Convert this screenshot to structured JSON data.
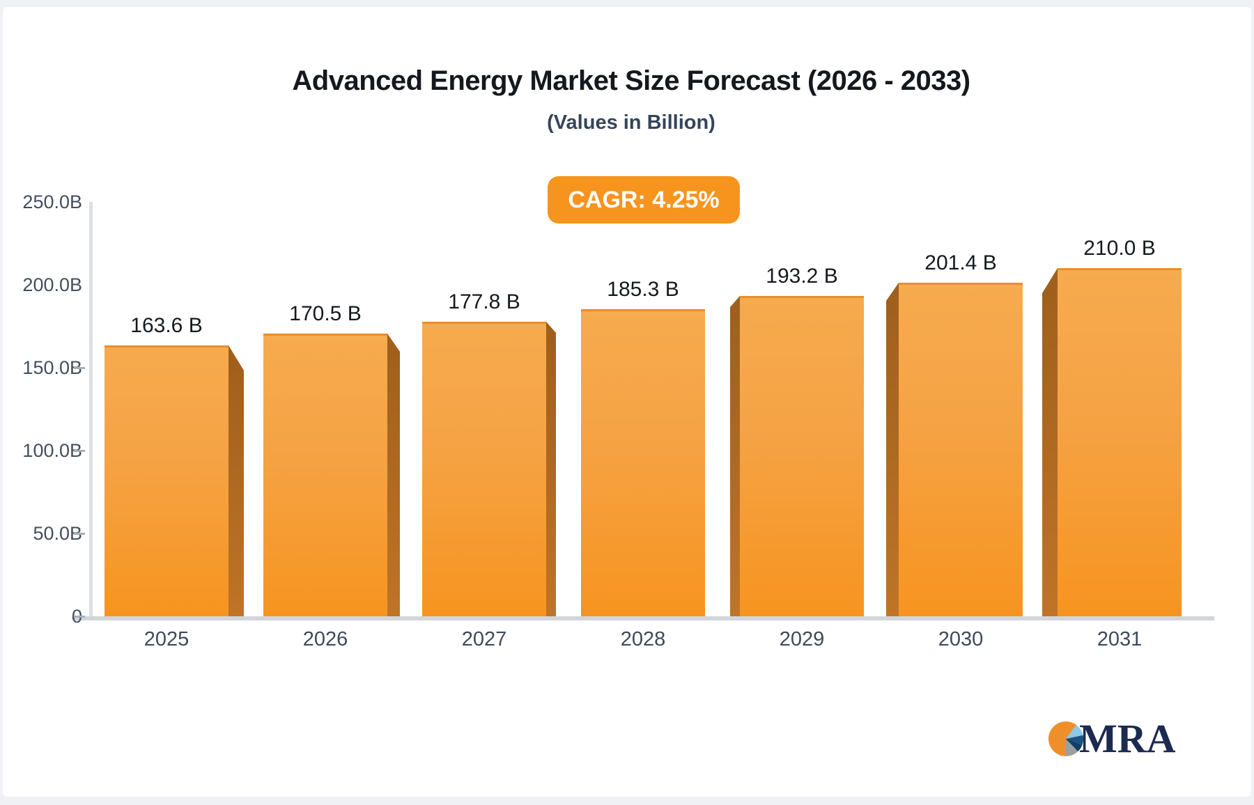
{
  "page": {
    "background": "#f0f1f4",
    "card_background": "#ffffff"
  },
  "header": {
    "title": "Advanced Energy Market Size Forecast (2026 - 2033)",
    "subtitle": "(Values in Billion)"
  },
  "badge": {
    "label": "CAGR: 4.25%",
    "background": "#f7941d",
    "text_color": "#ffffff"
  },
  "chart_data": {
    "type": "bar",
    "title": "Advanced Energy Market Size Forecast (2026 - 2033)",
    "subtitle": "(Values in Billion)",
    "annotation": "CAGR: 4.25%",
    "categories": [
      "2025",
      "2026",
      "2027",
      "2028",
      "2029",
      "2030",
      "2031"
    ],
    "values": [
      163.6,
      170.5,
      177.8,
      185.3,
      193.2,
      201.4,
      210.0
    ],
    "value_labels": [
      "163.6 B",
      "170.5 B",
      "177.8 B",
      "185.3 B",
      "193.2 B",
      "201.4 B",
      "210.0 B"
    ],
    "xlabel": "",
    "ylabel": "",
    "ylim": [
      0,
      250
    ],
    "grid": false,
    "legend": false,
    "style": "3d-bars-perspective-toward-center",
    "bar_color_top": "#f6ab4e",
    "bar_color_bottom": "#f79420",
    "bar_side_color": "#a96620"
  },
  "y_axis": {
    "tick_labels": [
      "250.0B",
      "200.0B",
      "150.0B",
      "100.0B",
      "50.0B",
      "0"
    ],
    "tick_values": [
      250,
      200,
      150,
      100,
      50,
      0
    ],
    "ticks_with_dash": [
      150,
      100,
      50,
      0
    ]
  },
  "logo": {
    "text": "MRA",
    "pie_colors": [
      "#ef8f2a",
      "#8cc8e8",
      "#1c5481",
      "#123e63",
      "#9a9fa3"
    ],
    "text_color": "#1c2a50"
  }
}
